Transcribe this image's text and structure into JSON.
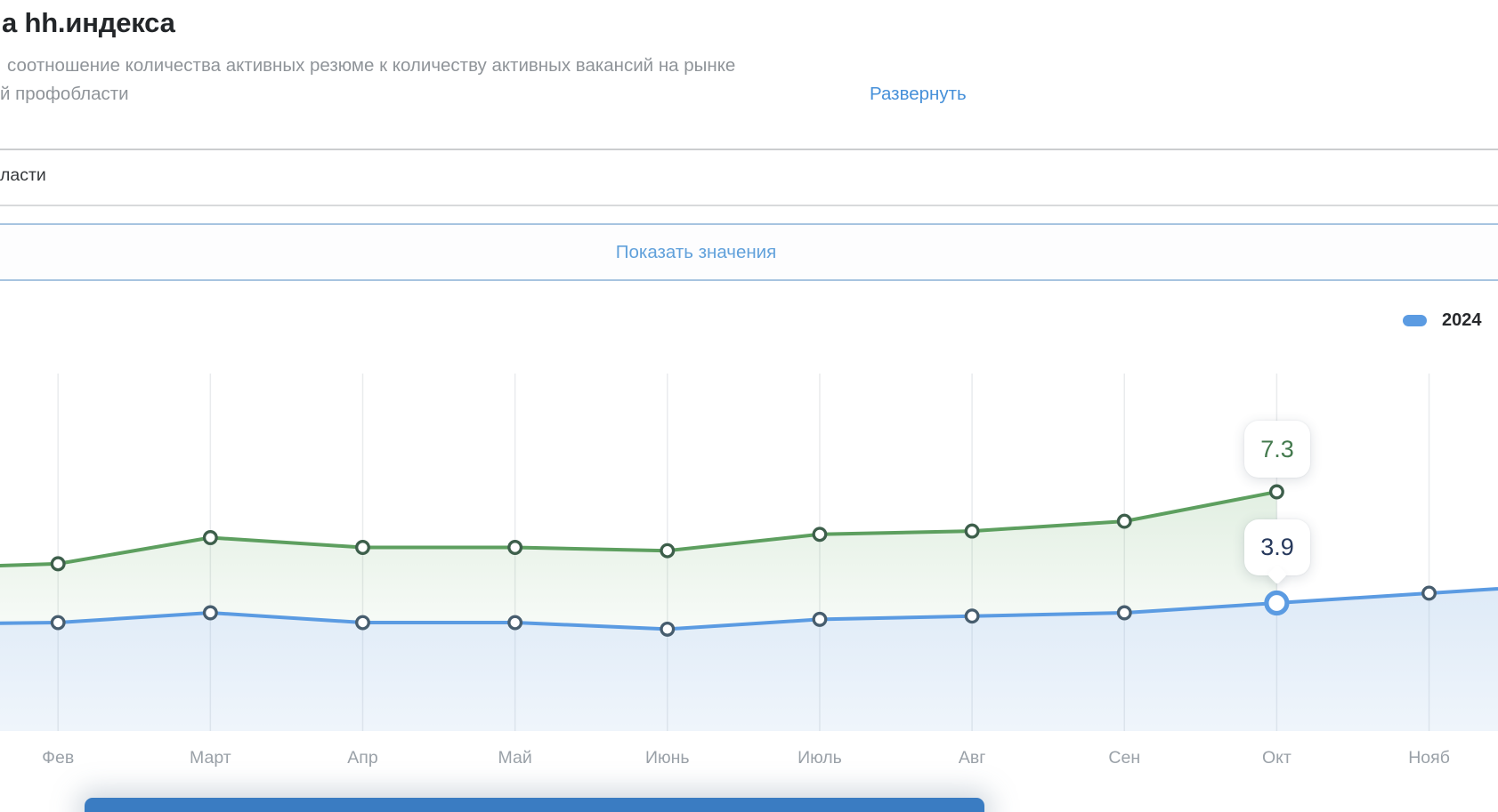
{
  "header": {
    "title": "а hh.индекса",
    "subtitle_line1": "соотношение количества активных резюме к количеству активных вакансий на рынке",
    "subtitle_line2": "й профобласти",
    "expand_link": "Развернуть"
  },
  "filter_row": {
    "label": "ласти"
  },
  "values_panel": {
    "toggle_label": "Показать значения"
  },
  "legend": {
    "items": [
      {
        "label": "2024",
        "color": "#5b9be2"
      }
    ]
  },
  "chart_data": {
    "type": "line",
    "title": "",
    "xlabel": "",
    "ylabel": "",
    "months": [
      "Фев",
      "Март",
      "Апр",
      "Май",
      "Июнь",
      "Июль",
      "Авг",
      "Сен",
      "Окт",
      "Нояб"
    ],
    "series": [
      {
        "name": "green-series",
        "color": "#5d9f5f",
        "marker_stroke": "#3d5f4b",
        "values": [
          5.1,
          5.9,
          5.6,
          5.6,
          5.5,
          6.0,
          6.1,
          6.4,
          7.3
        ]
      },
      {
        "name": "2024",
        "color": "#5b9be2",
        "marker_stroke": "#475d6e",
        "values": [
          3.3,
          3.6,
          3.3,
          3.3,
          3.1,
          3.4,
          3.5,
          3.6,
          3.9,
          4.2
        ]
      }
    ],
    "offscreen": {
      "green_left": 4.95,
      "blue_left": 3.25,
      "blue_right": 4.5
    },
    "tooltips": {
      "month": "Окт",
      "green_value": "7.3",
      "blue_value": "3.9"
    },
    "highlight_month": "Окт",
    "grid": "vertical-only",
    "legend_position": "top-right",
    "gridline_color": "#e9ebed"
  },
  "bottom_banner": {
    "color": "#3a7cc2"
  }
}
